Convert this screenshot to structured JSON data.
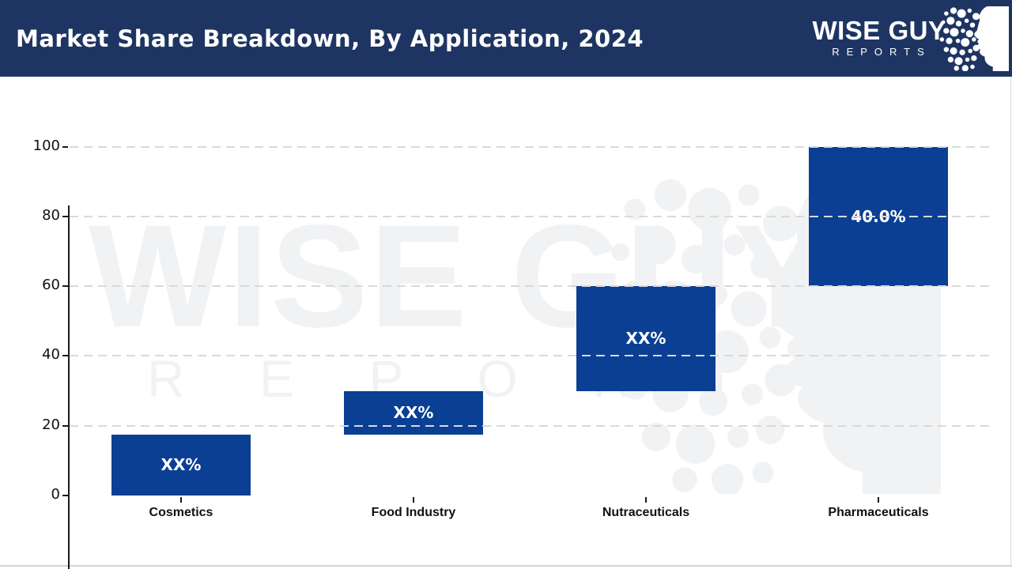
{
  "header": {
    "title": "Market Share Breakdown, By Application, 2024",
    "logo": {
      "line1": "WISE GUY",
      "line2": "REPORTS"
    }
  },
  "watermark": {
    "line1": "WISE GUY",
    "line2": "R E P O R T S"
  },
  "chart_data": {
    "type": "bar",
    "variant": "waterfall",
    "title": "Market Share Breakdown, By Application, 2024",
    "categories": [
      "Cosmetics",
      "Food Industry",
      "Nutraceuticals",
      "Pharmaceuticals"
    ],
    "bars": [
      {
        "category": "Cosmetics",
        "segment_start": 0,
        "segment_end": 17.5,
        "value": 17.5,
        "label": "XX%"
      },
      {
        "category": "Food Industry",
        "segment_start": 17.5,
        "segment_end": 30,
        "value": 12.5,
        "label": "XX%"
      },
      {
        "category": "Nutraceuticals",
        "segment_start": 30,
        "segment_end": 60,
        "value": 30,
        "label": "XX%"
      },
      {
        "category": "Pharmaceuticals",
        "segment_start": 60,
        "segment_end": 100,
        "value": 40,
        "label": "40.0%"
      }
    ],
    "yticks": [
      0,
      20,
      40,
      60,
      80,
      100
    ],
    "ylim": [
      0,
      105
    ],
    "xlabel": "",
    "ylabel": "",
    "grid": "horizontal-dashed",
    "legend": "none",
    "bar_color": "#0b3f94",
    "bar_label_color": "#ffffff"
  },
  "colors": {
    "header_bg": "#1e3563",
    "title_text": "#ffffff",
    "bar_fill": "#0b3f94",
    "axis": "#1a1a1a",
    "tick_text": "#111111",
    "gridline": "#d9d9d9",
    "watermark": "#f1f2f4",
    "page_bg": "#ffffff"
  }
}
